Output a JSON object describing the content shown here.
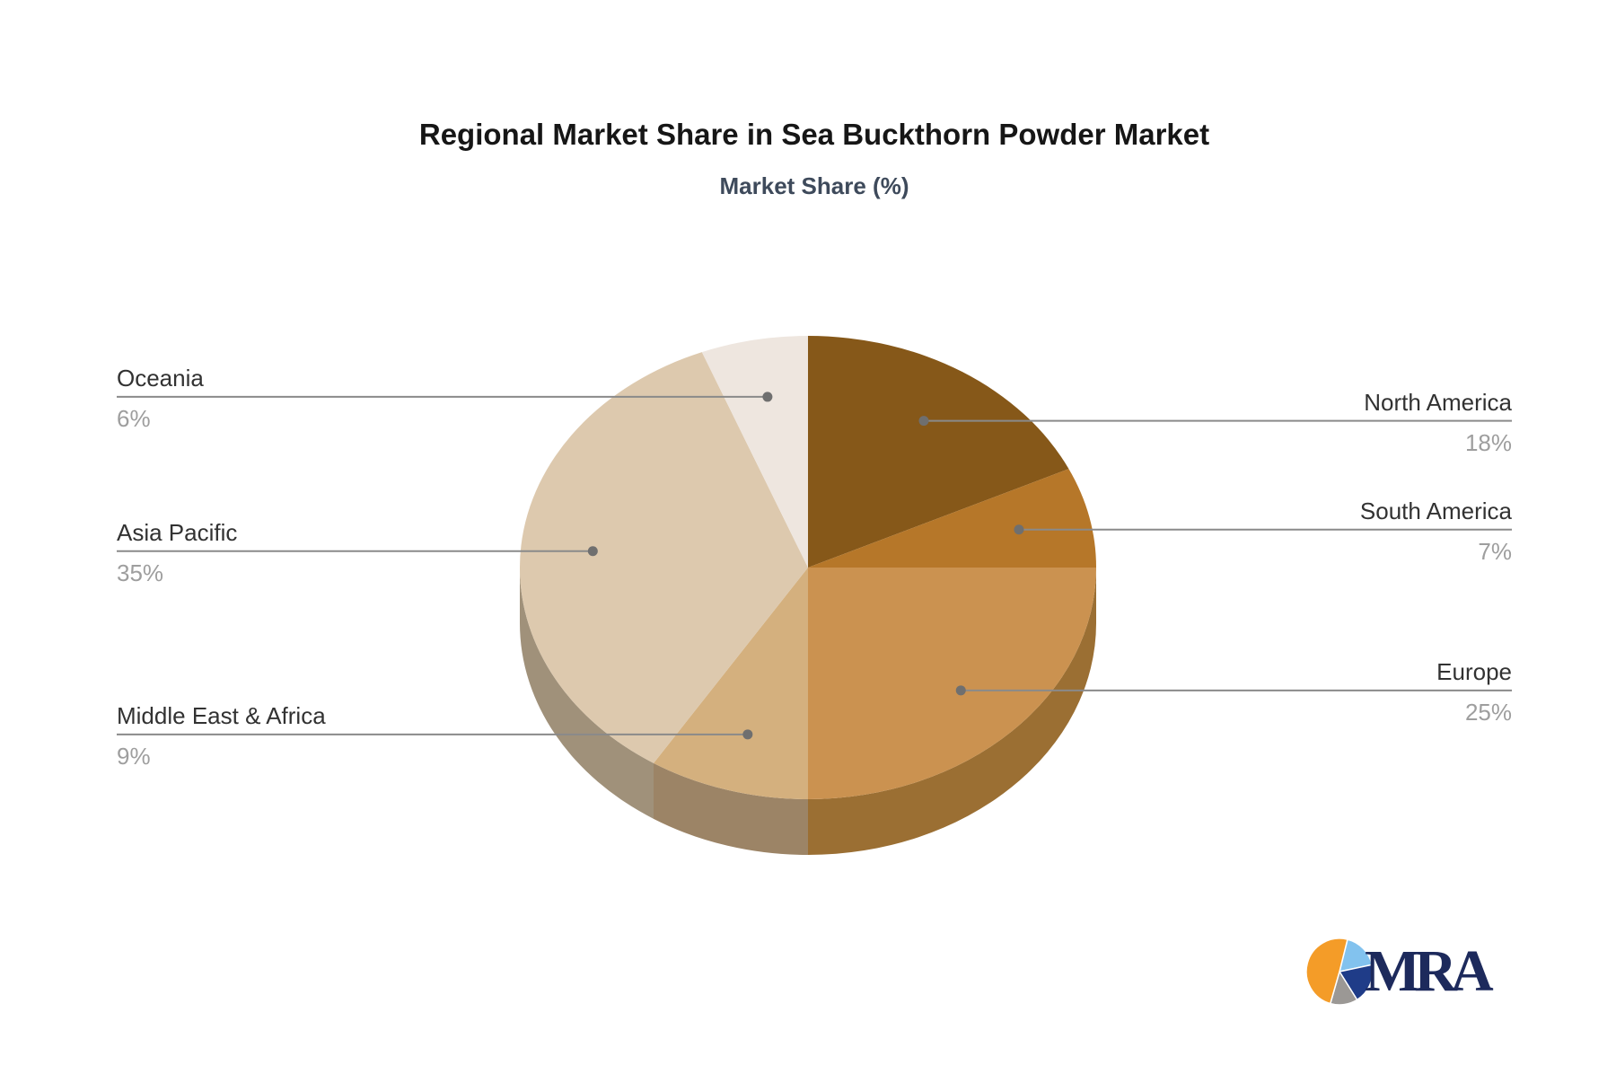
{
  "header": {
    "title": "Regional Market Share in Sea Buckthorn Powder Market",
    "subtitle": "Market Share (%)",
    "title_color": "#161616",
    "subtitle_color": "#3e4a5b"
  },
  "chart_data": {
    "type": "pie",
    "title": "Regional Market Share in Sea Buckthorn Powder Market",
    "subtitle": "Market Share (%)",
    "unit": "%",
    "style": "3d-pie",
    "start_angle": "12-o-clock",
    "direction": "clockwise",
    "legend_position": "callout-labels-left-right",
    "series": [
      {
        "label": "North America",
        "value": 18,
        "color": "#865819",
        "side_color": "#5f3d10"
      },
      {
        "label": "South America",
        "value": 7,
        "color": "#b67729",
        "side_color": "#8f5c1f"
      },
      {
        "label": "Europe",
        "value": 25,
        "color": "#cb9250",
        "side_color": "#9b6f33"
      },
      {
        "label": "Middle East & Africa",
        "value": 9,
        "color": "#d4b07e",
        "side_color": "#9c8466"
      },
      {
        "label": "Asia Pacific",
        "value": 35,
        "color": "#ddc9ae",
        "side_color": "#a0917a"
      },
      {
        "label": "Oceania",
        "value": 6,
        "color": "#eee6df",
        "side_color": "#c2b8b0"
      }
    ],
    "label_color": "#323232",
    "value_color": "#9e9e9e",
    "leader_line_color": "#8a8a8a",
    "leader_dot_color": "#6f6f6f"
  },
  "logo": {
    "text": "MRA",
    "text_color": "#1d2a5c",
    "icon": {
      "name": "pie-mark",
      "slices": [
        {
          "name": "light-blue",
          "start": 14,
          "end": 78,
          "color": "#82c2ee"
        },
        {
          "name": "navy",
          "start": 78,
          "end": 148,
          "color": "#1f3c88"
        },
        {
          "name": "gray",
          "start": 148,
          "end": 196,
          "color": "#9b9895"
        },
        {
          "name": "orange",
          "start": 196,
          "end": 374,
          "color": "#f49c28"
        }
      ]
    }
  }
}
